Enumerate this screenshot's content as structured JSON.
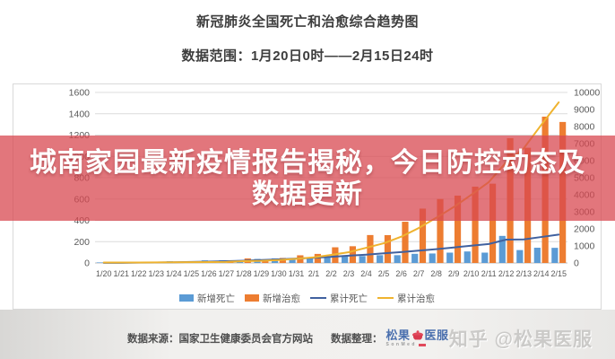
{
  "header": {
    "title": "新冠肺炎全国死亡和治愈综合趋势图",
    "subtitle": "数据范围：1月20日0时——2月15日24时"
  },
  "overlay": {
    "line1": "城南家园最新疫情报告揭秘，今日防控动态及",
    "line2": "数据更新",
    "band_color": "rgba(216,72,80,0.75)",
    "text_color": "#ffffff"
  },
  "chart_data": {
    "type": "bar",
    "subtype": "combo bar+line, dual axis",
    "categories": [
      "1/20",
      "1/21",
      "1/22",
      "1/23",
      "1/24",
      "1/25",
      "1/26",
      "1/27",
      "1/28",
      "1/29",
      "1/30",
      "1/31",
      "2/1",
      "2/2",
      "2/3",
      "2/4",
      "2/5",
      "2/6",
      "2/7",
      "2/8",
      "2/9",
      "2/10",
      "2/11",
      "2/12",
      "2/13",
      "2/14",
      "2/15"
    ],
    "series": [
      {
        "name": "新增死亡",
        "type": "bar",
        "axis": "left",
        "color": "#5B9BD5",
        "values": [
          3,
          3,
          8,
          8,
          16,
          15,
          24,
          26,
          26,
          38,
          43,
          46,
          45,
          57,
          64,
          65,
          73,
          73,
          86,
          89,
          97,
          108,
          97,
          254,
          121,
          143,
          142
        ]
      },
      {
        "name": "新增治愈",
        "type": "bar",
        "axis": "left",
        "color": "#ED7D31",
        "values": [
          0,
          3,
          3,
          6,
          11,
          11,
          9,
          12,
          43,
          21,
          47,
          72,
          85,
          147,
          157,
          262,
          261,
          387,
          510,
          600,
          632,
          716,
          744,
          1171,
          1081,
          1373,
          1323
        ]
      },
      {
        "name": "累计死亡",
        "type": "line",
        "axis": "right",
        "color": "#40619F",
        "values": [
          6,
          9,
          17,
          25,
          41,
          56,
          80,
          106,
          132,
          170,
          213,
          259,
          304,
          361,
          425,
          490,
          563,
          636,
          722,
          811,
          908,
          1016,
          1113,
          1367,
          1380,
          1523,
          1665
        ]
      },
      {
        "name": "累计治愈",
        "type": "line",
        "axis": "right",
        "color": "#EFB32F",
        "values": [
          25,
          25,
          28,
          34,
          38,
          49,
          51,
          60,
          103,
          124,
          171,
          243,
          328,
          475,
          632,
          892,
          1153,
          1540,
          2050,
          2649,
          3281,
          3996,
          4740,
          5911,
          6723,
          8096,
          9419
        ]
      }
    ],
    "left_axis": {
      "min": 0,
      "max": 1600,
      "step": 200
    },
    "right_axis": {
      "min": 0,
      "max": 10000,
      "step": 1000
    },
    "grid": true,
    "legend_position": "bottom"
  },
  "footer": {
    "source_label": "数据来源：国家卫生健康委员会官方网站",
    "compile_label": "数据整理：",
    "logo_text_left": "松果",
    "logo_text_right": "医服",
    "logo_subtext": "SonMed",
    "watermark": "知乎 @松果医服"
  }
}
